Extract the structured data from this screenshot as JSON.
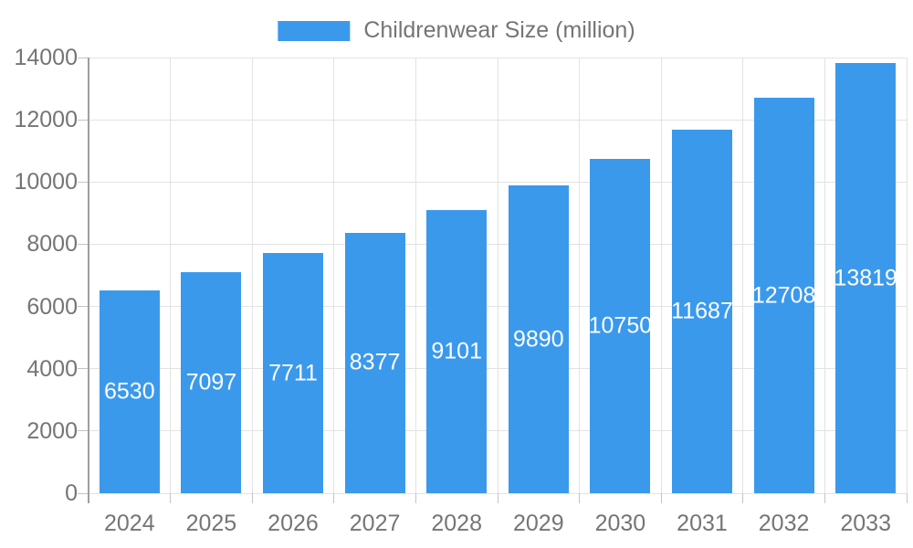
{
  "legend": {
    "label": "Childrenwear Size (million)"
  },
  "chart_data": {
    "type": "bar",
    "title": "Childrenwear Size (million)",
    "categories": [
      "2024",
      "2025",
      "2026",
      "2027",
      "2028",
      "2029",
      "2030",
      "2031",
      "2032",
      "2033"
    ],
    "series": [
      {
        "name": "Childrenwear Size (million)",
        "values": [
          6530,
          7097,
          7711,
          8377,
          9101,
          9890,
          10750,
          11687,
          12708,
          13819
        ]
      }
    ],
    "value_labels": [
      "6530",
      "7097",
      "7711",
      "8377",
      "9101",
      "9890",
      "10750",
      "11687",
      "12708",
      "13819"
    ],
    "xlabel": "",
    "ylabel": "",
    "ylim": [
      0,
      14000
    ],
    "yticks": [
      0,
      2000,
      4000,
      6000,
      8000,
      10000,
      12000,
      14000
    ],
    "ytick_labels": [
      "0",
      "2000",
      "4000",
      "6000",
      "8000",
      "10000",
      "12000",
      "14000"
    ],
    "grid": true,
    "legend_position": "top-center",
    "colors": {
      "bar": "#3B99EC",
      "value_label": "#FFFFFF",
      "axis_text": "#757575",
      "gridline": "#E3E3E3",
      "axis_line": "#9E9E9E",
      "tick": "#C4C4C4",
      "background": "#FFFFFF"
    }
  }
}
